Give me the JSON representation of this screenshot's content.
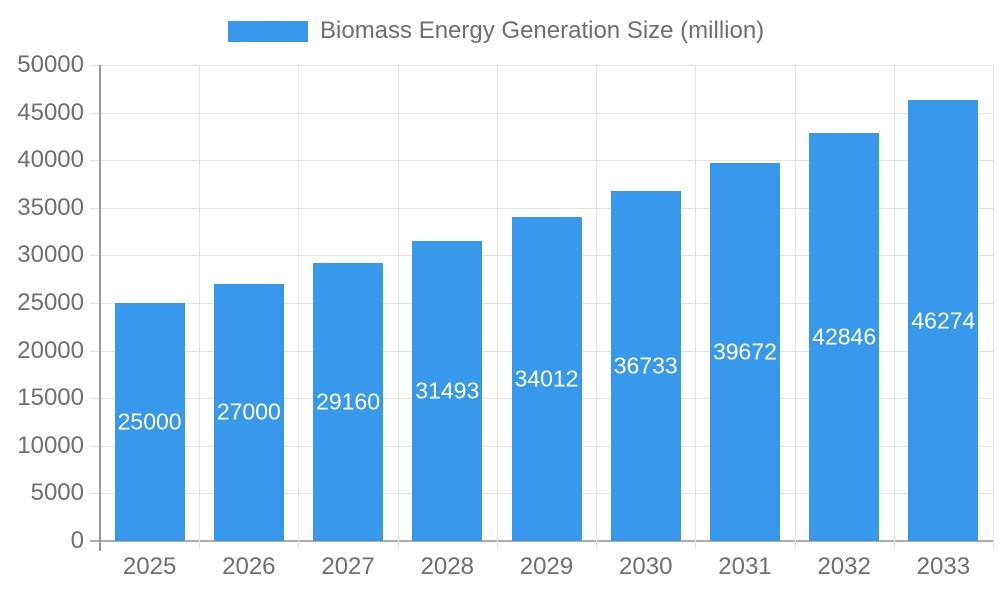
{
  "chart_data": {
    "type": "bar",
    "title": "",
    "series_name": "Biomass Energy Generation Size (million)",
    "categories": [
      "2025",
      "2026",
      "2027",
      "2028",
      "2029",
      "2030",
      "2031",
      "2032",
      "2033"
    ],
    "values": [
      25000,
      27000,
      29160,
      31493,
      34012,
      36733,
      39672,
      42846,
      46274
    ],
    "value_labels": [
      "25000",
      "27000",
      "29160",
      "31493",
      "34012",
      "36733",
      "39672",
      "42846",
      "46274"
    ],
    "xlabel": "",
    "ylabel": "",
    "ylim": [
      0,
      50000
    ],
    "yticks": [
      0,
      5000,
      10000,
      15000,
      20000,
      25000,
      30000,
      35000,
      40000,
      45000,
      50000
    ],
    "grid": true,
    "legend_position": "top",
    "colors": {
      "bar": "#3898ec",
      "bar_value_text": "#ffffff",
      "axis_text": "#6f6f6f",
      "gridline": "#e3e3e3",
      "axis_line": "#999999",
      "baseline": "#acacac",
      "background": "#ffffff"
    }
  }
}
